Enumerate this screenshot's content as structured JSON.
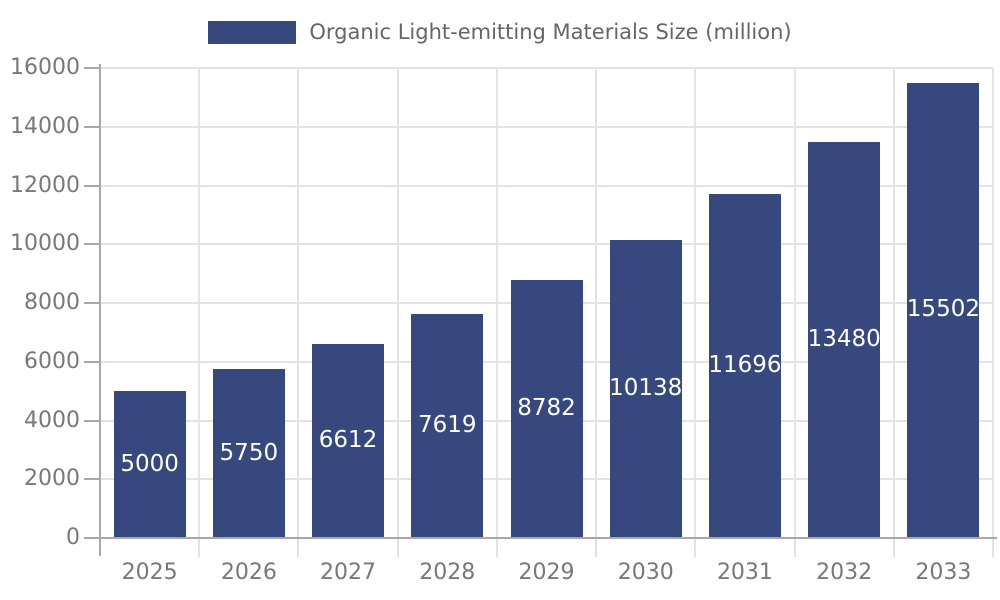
{
  "chart_data": {
    "type": "bar",
    "title": "Organic Light-emitting Materials Size (million)",
    "legend_position": "top-center",
    "categories": [
      "2025",
      "2026",
      "2027",
      "2028",
      "2029",
      "2030",
      "2031",
      "2032",
      "2033"
    ],
    "values": [
      5000,
      5750,
      6612,
      7619,
      8782,
      10138,
      11696,
      13480,
      15502
    ],
    "bar_labels": [
      "5000",
      "5750",
      "6612",
      "7619",
      "8782",
      "10138",
      "11696",
      "13480",
      "15502"
    ],
    "value_label_position": "inside-center",
    "xlabel": "",
    "ylabel": "",
    "ylim": [
      0,
      16000
    ],
    "ytick_step": 2000,
    "yticks": [
      "0",
      "2000",
      "4000",
      "6000",
      "8000",
      "10000",
      "12000",
      "14000",
      "16000"
    ],
    "grid": true
  },
  "colors": {
    "bar": "#36487D",
    "bar_value_text": "#FFFFFF",
    "axis_line": "#A8A8A8",
    "tick_light": "#E2E2E2",
    "gridline_h": "#E2E2E8",
    "gridline_v": "#E4E4E4",
    "axis_text": "#787878",
    "legend_text": "#666666",
    "background": "#FFFFFF"
  }
}
